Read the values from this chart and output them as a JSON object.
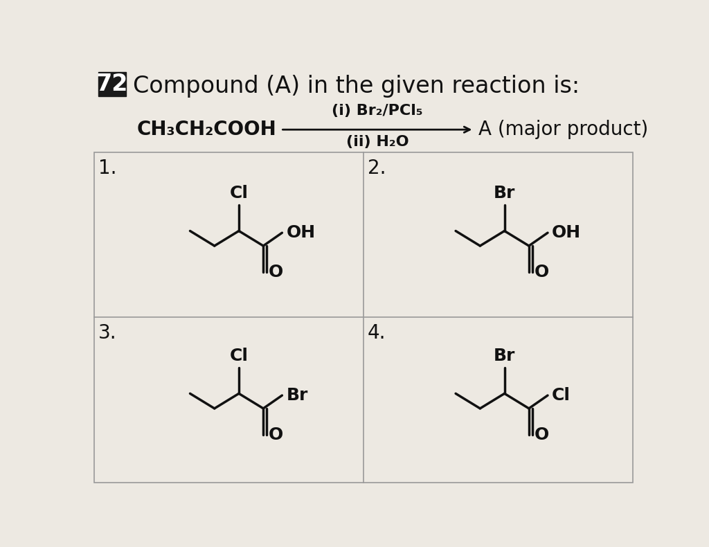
{
  "title_number": "72",
  "title_text": "Compound (A) in the given reaction is:",
  "reaction_reactant": "CH₃CH₂COOH",
  "reaction_condition_top": "(i) Br₂/PCl₅",
  "reaction_condition_bottom": "(ii) H₂O",
  "reaction_product": "A (major product)",
  "background_color": "#ede9e2",
  "grid_color": "#999999",
  "text_color": "#111111",
  "title_box_color": "#1a1a1a",
  "title_number_color": "#ffffff",
  "halogen_top": [
    "Cl",
    "Br",
    "Cl",
    "Br"
  ],
  "halogen_right": [
    "OH",
    "OH",
    "Br",
    "Cl"
  ],
  "option_labels": [
    "1.",
    "2.",
    "3.",
    "4."
  ],
  "font_size_title": 24,
  "font_size_option": 20,
  "font_size_react": 20,
  "font_size_cond": 16,
  "font_size_atom": 18,
  "arrow_color": "#111111"
}
